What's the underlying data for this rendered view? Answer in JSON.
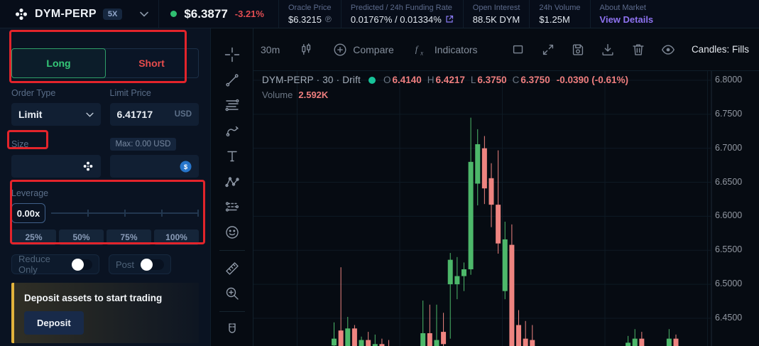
{
  "topbar": {
    "market": "DYM-PERP",
    "leverage_badge": "5X",
    "price": "$6.3877",
    "change": "-3.21%",
    "stats": [
      {
        "label": "Oracle Price",
        "value": "$6.3215",
        "icon": "pyth-icon"
      },
      {
        "label": "Predicted / 24h Funding Rate",
        "value": "0.01767% / 0.01334%",
        "icon": "external-link-icon"
      },
      {
        "label": "Open Interest",
        "value": "88.5K DYM"
      },
      {
        "label": "24h Volume",
        "value": "$1.25M"
      },
      {
        "label": "About Market",
        "value": "View Details"
      }
    ]
  },
  "order_panel": {
    "tabs": {
      "long": "Long",
      "short": "Short"
    },
    "order_type_label": "Order Type",
    "order_type_value": "Limit",
    "limit_price_label": "Limit Price",
    "limit_price_value": "6.41717",
    "limit_price_unit": "USD",
    "size_label": "Size",
    "max_label": "Max:  0.00 USD",
    "leverage_label": "Leverage",
    "leverage_value": "0.00x",
    "leverage_presets": [
      "25%",
      "50%",
      "75%",
      "100%"
    ],
    "reduce_only_label": "Reduce Only",
    "post_label": "Post",
    "deposit_title": "Deposit assets to start trading",
    "deposit_button": "Deposit"
  },
  "chart_toolbar": {
    "interval": "30m",
    "compare": "Compare",
    "indicators": "Indicators",
    "candles_mode": "Candles: Fills"
  },
  "icons": {
    "market-logo-icon": "four-petal clover",
    "chevron-down-icon": "v",
    "pyth-icon": "circled P",
    "external-link-icon": "arrow out of box",
    "dym-token-icon": "white clover",
    "usdc-token-icon": "blue circle $",
    "left_toolbar": [
      "crosshair",
      "trend-line",
      "fib-retracement",
      "brush",
      "text",
      "xabcd-pattern",
      "forecast",
      "emoji",
      "ruler",
      "zoom-in",
      "magnet"
    ],
    "top_toolbar": [
      "candles",
      "compare-plus",
      "fx-indicators",
      "screenshot",
      "fullscreen",
      "save",
      "download",
      "trash",
      "eye"
    ]
  },
  "chart_data": {
    "type": "candlestick",
    "symbol": "DYM-PERP",
    "interval": "30",
    "source": "Drift",
    "legend": {
      "title": "DYM-PERP · 30 · Drift",
      "ohlc": [
        [
          "O",
          "6.4140"
        ],
        [
          "H",
          "6.4217"
        ],
        [
          "L",
          "6.3750"
        ],
        [
          "C",
          "6.3750"
        ]
      ],
      "change": "-0.0390 (-0.61%)",
      "volume_label": "Volume",
      "volume": "2.592K"
    },
    "y_axis": {
      "ticks": [
        6.8,
        6.75,
        6.7,
        6.65,
        6.6,
        6.55,
        6.5,
        6.45
      ],
      "top": 6.8,
      "bottom": 6.45,
      "decimals": 4
    },
    "up_color": "#4db86a",
    "down_color": "#ee8480",
    "candles": [
      {
        "i": 0,
        "o": 6.41,
        "h": 6.444,
        "l": 6.392,
        "c": 6.42
      },
      {
        "i": 1,
        "o": 6.432,
        "h": 6.525,
        "l": 6.39,
        "c": 6.404
      },
      {
        "i": 2,
        "o": 6.409,
        "h": 6.452,
        "l": 6.392,
        "c": 6.435
      },
      {
        "i": 3,
        "o": 6.435,
        "h": 6.44,
        "l": 6.392,
        "c": 6.408
      },
      {
        "i": 4,
        "o": 6.405,
        "h": 6.423,
        "l": 6.392,
        "c": 6.418
      },
      {
        "i": 5,
        "o": 6.418,
        "h": 6.43,
        "l": 6.39,
        "c": 6.4
      },
      {
        "i": 6,
        "o": 6.4,
        "h": 6.426,
        "l": 6.39,
        "c": 6.412
      },
      {
        "i": 7,
        "o": 6.412,
        "h": 6.42,
        "l": 6.388,
        "c": 6.398
      },
      {
        "i": 8,
        "o": 6.405,
        "h": 6.418,
        "l": 6.388,
        "c": 6.396
      },
      {
        "i": 13,
        "o": 6.409,
        "h": 6.476,
        "l": 6.392,
        "c": 6.428
      },
      {
        "i": 14,
        "o": 6.428,
        "h": 6.47,
        "l": 6.392,
        "c": 6.406
      },
      {
        "i": 15,
        "o": 6.406,
        "h": 6.47,
        "l": 6.392,
        "c": 6.418
      },
      {
        "i": 16,
        "o": 6.43,
        "h": 6.458,
        "l": 6.396,
        "c": 6.412
      },
      {
        "i": 17,
        "o": 6.5,
        "h": 6.546,
        "l": 6.42,
        "c": 6.536
      },
      {
        "i": 18,
        "o": 6.5,
        "h": 6.54,
        "l": 6.478,
        "c": 6.512
      },
      {
        "i": 19,
        "o": 6.512,
        "h": 6.532,
        "l": 6.49,
        "c": 6.522
      },
      {
        "i": 20,
        "o": 6.522,
        "h": 6.745,
        "l": 6.514,
        "c": 6.68
      },
      {
        "i": 21,
        "o": 6.648,
        "h": 6.728,
        "l": 6.616,
        "c": 6.706
      },
      {
        "i": 22,
        "o": 6.7,
        "h": 6.718,
        "l": 6.618,
        "c": 6.641
      },
      {
        "i": 23,
        "o": 6.656,
        "h": 6.678,
        "l": 6.584,
        "c": 6.617
      },
      {
        "i": 24,
        "o": 6.617,
        "h": 6.697,
        "l": 6.545,
        "c": 6.56
      },
      {
        "i": 25,
        "o": 6.49,
        "h": 6.592,
        "l": 6.478,
        "c": 6.566
      },
      {
        "i": 26,
        "o": 6.558,
        "h": 6.588,
        "l": 6.388,
        "c": 6.4
      },
      {
        "i": 27,
        "o": 6.44,
        "h": 6.462,
        "l": 6.386,
        "c": 6.402
      },
      {
        "i": 28,
        "o": 6.42,
        "h": 6.446,
        "l": 6.386,
        "c": 6.398
      },
      {
        "i": 29,
        "o": 6.418,
        "h": 6.44,
        "l": 6.386,
        "c": 6.4
      },
      {
        "i": 43,
        "o": 6.404,
        "h": 6.424,
        "l": 6.392,
        "c": 6.414
      },
      {
        "i": 44,
        "o": 6.408,
        "h": 6.434,
        "l": 6.394,
        "c": 6.42
      },
      {
        "i": 45,
        "o": 6.42,
        "h": 6.43,
        "l": 6.392,
        "c": 6.406
      },
      {
        "i": 49,
        "o": 6.406,
        "h": 6.434,
        "l": 6.398,
        "c": 6.42
      },
      {
        "i": 50,
        "o": 6.42,
        "h": 6.426,
        "l": 6.394,
        "c": 6.404
      }
    ]
  }
}
